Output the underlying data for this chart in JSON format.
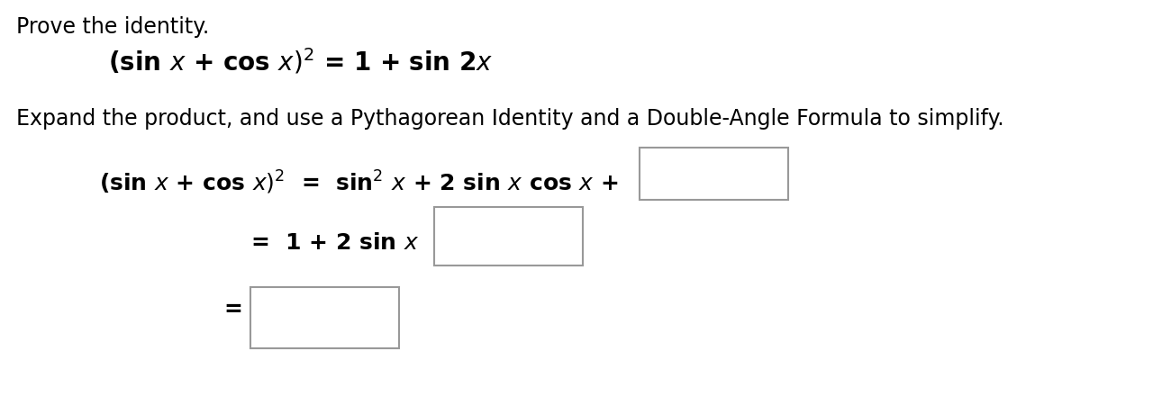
{
  "background_color": "#ffffff",
  "text_color": "#000000",
  "box_edge_color": "#999999",
  "box_face_color": "#ffffff",
  "font_size_title": 17,
  "font_size_identity": 20,
  "font_size_instruction": 17,
  "font_size_math": 18,
  "line1_text": "(sin x + cos x)² = sin² x + 2 sin x cos x +",
  "line2_text": "= 1 + 2 sin x",
  "line3_text": "="
}
